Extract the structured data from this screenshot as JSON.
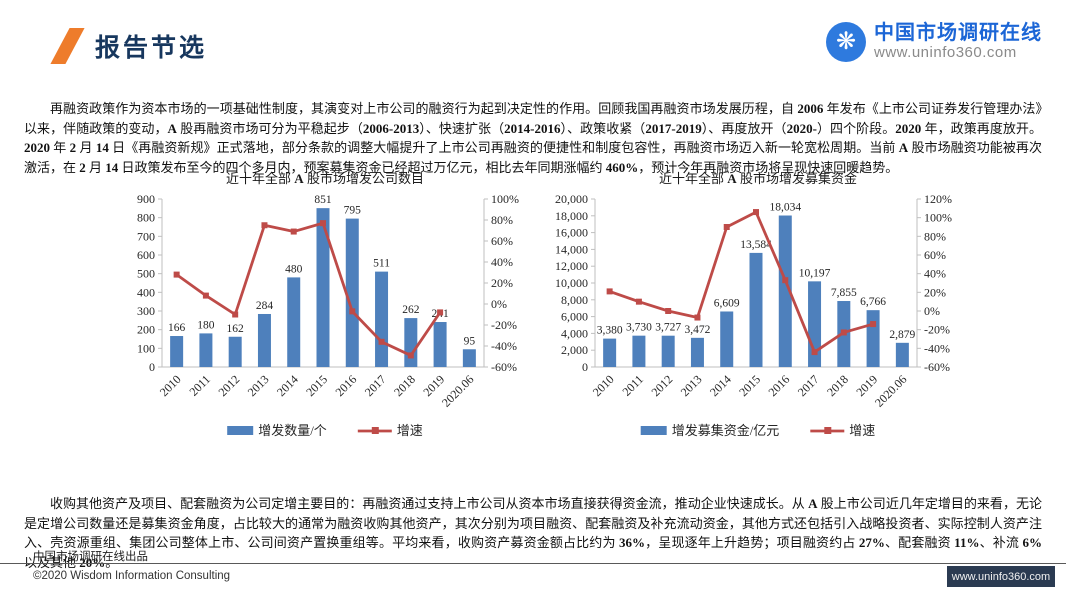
{
  "header": {
    "title": "报告节选"
  },
  "logo": {
    "name": "中国市场调研在线",
    "url": "www.uninfo360.com",
    "icon": "snowflake-icon",
    "brand_blue": "#1c66d6",
    "circle_blue": "#2e7ade"
  },
  "paragraphs": {
    "intro": "再融资政策作为资本市场的一项基础性制度，其演变对上市公司的融资行为起到决定性的作用。回顾我国再融资市场发展历程，自 2006 年发布《上市公司证券发行管理办法》以来，伴随政策的变动，A 股再融资市场可分为平稳起步（2006-2013）、快速扩张（2014-2016）、政策收紧（2017-2019）、再度放开（2020-）四个阶段。2020 年，政策再度放开。2020 年 2 月 14 日《再融资新规》正式落地，部分条款的调整大幅提升了上市公司再融资的便捷性和制度包容性，再融资市场迈入新一轮宽松周期。当前 A 股市场融资功能被再次激活，在 2 月 14 日政策发布至今的四个多月内，预案募集资金已经超过万亿元，相比去年同期涨幅约 460%，预计今年再融资市场将呈现快速回暖趋势。",
    "summary": "收购其他资产及项目、配套融资为公司定增主要目的：再融资通过支持上市公司从资本市场直接获得资金流，推动企业快速成长。从 A 股上市公司近几年定增目的来看，无论是定增公司数量还是募集资金角度，占比较大的通常为融资收购其他资产，其次分别为项目融资、配套融资及补充流动资金，其他方式还包括引入战略投资者、实际控制人资产注入、壳资源重组、集团公司整体上市、公司间资产置换重组等。平均来看，收购资产募资金额占比约为 36%，呈现逐年上升趋势；项目融资约占 27%、配套融资 11%、补流 6%以及其他 20%。"
  },
  "chart_data": [
    {
      "type": "bar",
      "combo": "bar+line",
      "title": "近十年全部 A 股市场增发公司数目",
      "categories": [
        "2010",
        "2011",
        "2012",
        "2013",
        "2014",
        "2015",
        "2016",
        "2017",
        "2018",
        "2019",
        "2020.06"
      ],
      "series": [
        {
          "name": "增发数量/个",
          "type": "bar",
          "axis": "left",
          "color": "#4e80bc",
          "label_commas": false,
          "values": [
            166,
            180,
            162,
            284,
            480,
            851,
            795,
            511,
            262,
            241,
            95
          ]
        },
        {
          "name": "增速",
          "type": "line",
          "axis": "right",
          "color": "#be4b48",
          "values": [
            28,
            8,
            -10,
            75,
            69,
            77,
            -7,
            -36,
            -49,
            -8,
            null
          ]
        }
      ],
      "left_axis": {
        "min": 0,
        "max": 900,
        "step": 100,
        "commas": false
      },
      "right_axis": {
        "min": -60,
        "max": 100,
        "step": 20,
        "suffix": "%"
      },
      "grid": false,
      "legend_position": "bottom"
    },
    {
      "type": "bar",
      "combo": "bar+line",
      "title": "近十年全部 A 股市场增发募集资金",
      "categories": [
        "2010",
        "2011",
        "2012",
        "2013",
        "2014",
        "2015",
        "2016",
        "2017",
        "2018",
        "2019",
        "2020.06"
      ],
      "series": [
        {
          "name": "增发募集资金/亿元",
          "type": "bar",
          "axis": "left",
          "color": "#4e80bc",
          "label_commas": true,
          "values": [
            3380,
            3730,
            3727,
            3472,
            6609,
            13584,
            18034,
            10197,
            7855,
            6766,
            2879
          ]
        },
        {
          "name": "增速",
          "type": "line",
          "axis": "right",
          "color": "#be4b48",
          "values": [
            21,
            10,
            0,
            -7,
            90,
            106,
            33,
            -44,
            -23,
            -14,
            null
          ]
        }
      ],
      "left_axis": {
        "min": 0,
        "max": 20000,
        "step": 2000,
        "commas": true
      },
      "right_axis": {
        "min": -60,
        "max": 120,
        "step": 20,
        "suffix": "%"
      },
      "grid": false,
      "legend_position": "bottom"
    }
  ],
  "footer": {
    "produced_by": "中国市场调研在线出品",
    "copyright": "©2020 Wisdom Information Consulting",
    "site": "www.uninfo360.com",
    "site_box_bg": "#2b3b52"
  },
  "colors": {
    "accent_orange": "#ee7c2b",
    "title_navy": "#17375e",
    "bar_blue": "#4e80bc",
    "line_red": "#be4b48",
    "axis_gray": "#bfbfbf"
  }
}
